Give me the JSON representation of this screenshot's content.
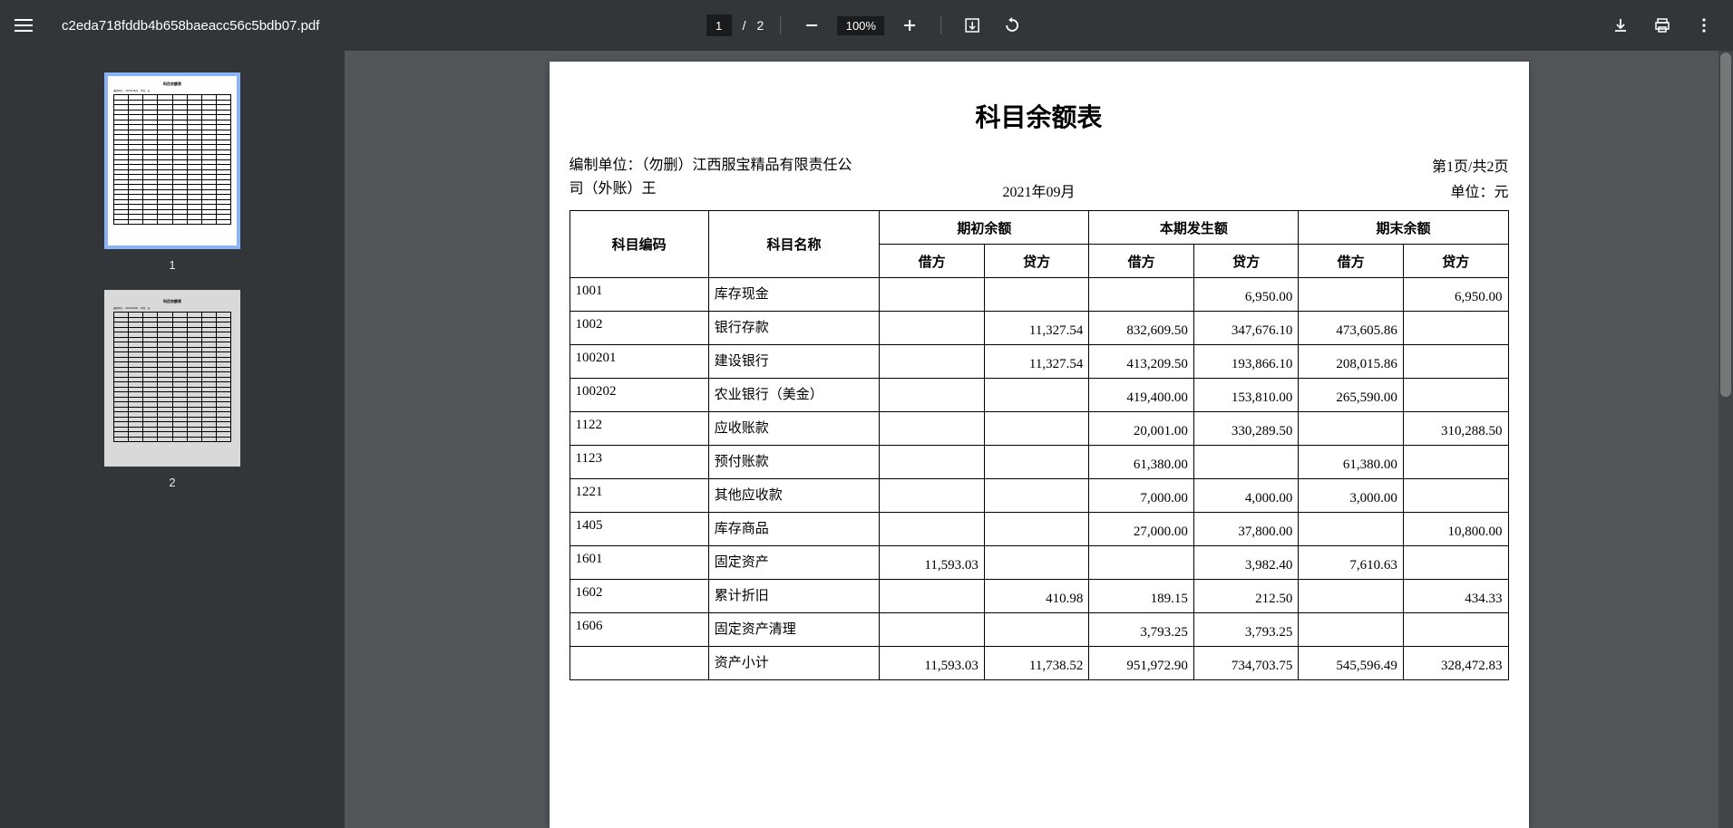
{
  "toolbar": {
    "filename": "c2eda718fddb4b658baeacc56c5bdb07.pdf",
    "page_current": "1",
    "page_sep": "/",
    "page_total": "2",
    "zoom": "100%"
  },
  "thumbnails": {
    "labels": [
      "1",
      "2"
    ]
  },
  "document": {
    "title": "科目余额表",
    "org_label": "编制单位：",
    "org_value": "（勿删）江西服宝精品有限责任公司（外账）王",
    "period": "2021年09月",
    "page_info": "第1页/共2页",
    "unit_label": "单位：元",
    "headers": {
      "code": "科目编码",
      "name": "科目名称",
      "opening": "期初余额",
      "period_amt": "本期发生额",
      "closing": "期末余额",
      "debit": "借方",
      "credit": "贷方"
    },
    "rows": [
      {
        "code": "1001",
        "name": "库存现金",
        "od": "",
        "oc": "",
        "pd": "",
        "pc": "6,950.00",
        "cd": "",
        "cc": "6,950.00"
      },
      {
        "code": "1002",
        "name": "银行存款",
        "od": "",
        "oc": "11,327.54",
        "pd": "832,609.50",
        "pc": "347,676.10",
        "cd": "473,605.86",
        "cc": ""
      },
      {
        "code": "100201",
        "name": "建设银行",
        "od": "",
        "oc": "11,327.54",
        "pd": "413,209.50",
        "pc": "193,866.10",
        "cd": "208,015.86",
        "cc": ""
      },
      {
        "code": "100202",
        "name": "农业银行（美金）",
        "od": "",
        "oc": "",
        "pd": "419,400.00",
        "pc": "153,810.00",
        "cd": "265,590.00",
        "cc": ""
      },
      {
        "code": "1122",
        "name": "应收账款",
        "od": "",
        "oc": "",
        "pd": "20,001.00",
        "pc": "330,289.50",
        "cd": "",
        "cc": "310,288.50"
      },
      {
        "code": "1123",
        "name": "预付账款",
        "od": "",
        "oc": "",
        "pd": "61,380.00",
        "pc": "",
        "cd": "61,380.00",
        "cc": ""
      },
      {
        "code": "1221",
        "name": "其他应收款",
        "od": "",
        "oc": "",
        "pd": "7,000.00",
        "pc": "4,000.00",
        "cd": "3,000.00",
        "cc": ""
      },
      {
        "code": "1405",
        "name": "库存商品",
        "od": "",
        "oc": "",
        "pd": "27,000.00",
        "pc": "37,800.00",
        "cd": "",
        "cc": "10,800.00"
      },
      {
        "code": "1601",
        "name": "固定资产",
        "od": "11,593.03",
        "oc": "",
        "pd": "",
        "pc": "3,982.40",
        "cd": "7,610.63",
        "cc": ""
      },
      {
        "code": "1602",
        "name": "累计折旧",
        "od": "",
        "oc": "410.98",
        "pd": "189.15",
        "pc": "212.50",
        "cd": "",
        "cc": "434.33"
      },
      {
        "code": "1606",
        "name": "固定资产清理",
        "od": "",
        "oc": "",
        "pd": "3,793.25",
        "pc": "3,793.25",
        "cd": "",
        "cc": ""
      },
      {
        "code": "",
        "name": "资产小计",
        "od": "11,593.03",
        "oc": "11,738.52",
        "pd": "951,972.90",
        "pc": "734,703.75",
        "cd": "545,596.49",
        "cc": "328,472.83"
      }
    ]
  },
  "colors": {
    "toolbar_bg": "#323639",
    "viewer_bg": "#525659",
    "thumb_active_border": "#8ab4f8",
    "page_bg": "#ffffff",
    "text": "#000000",
    "toolbar_text": "#ffffff"
  }
}
